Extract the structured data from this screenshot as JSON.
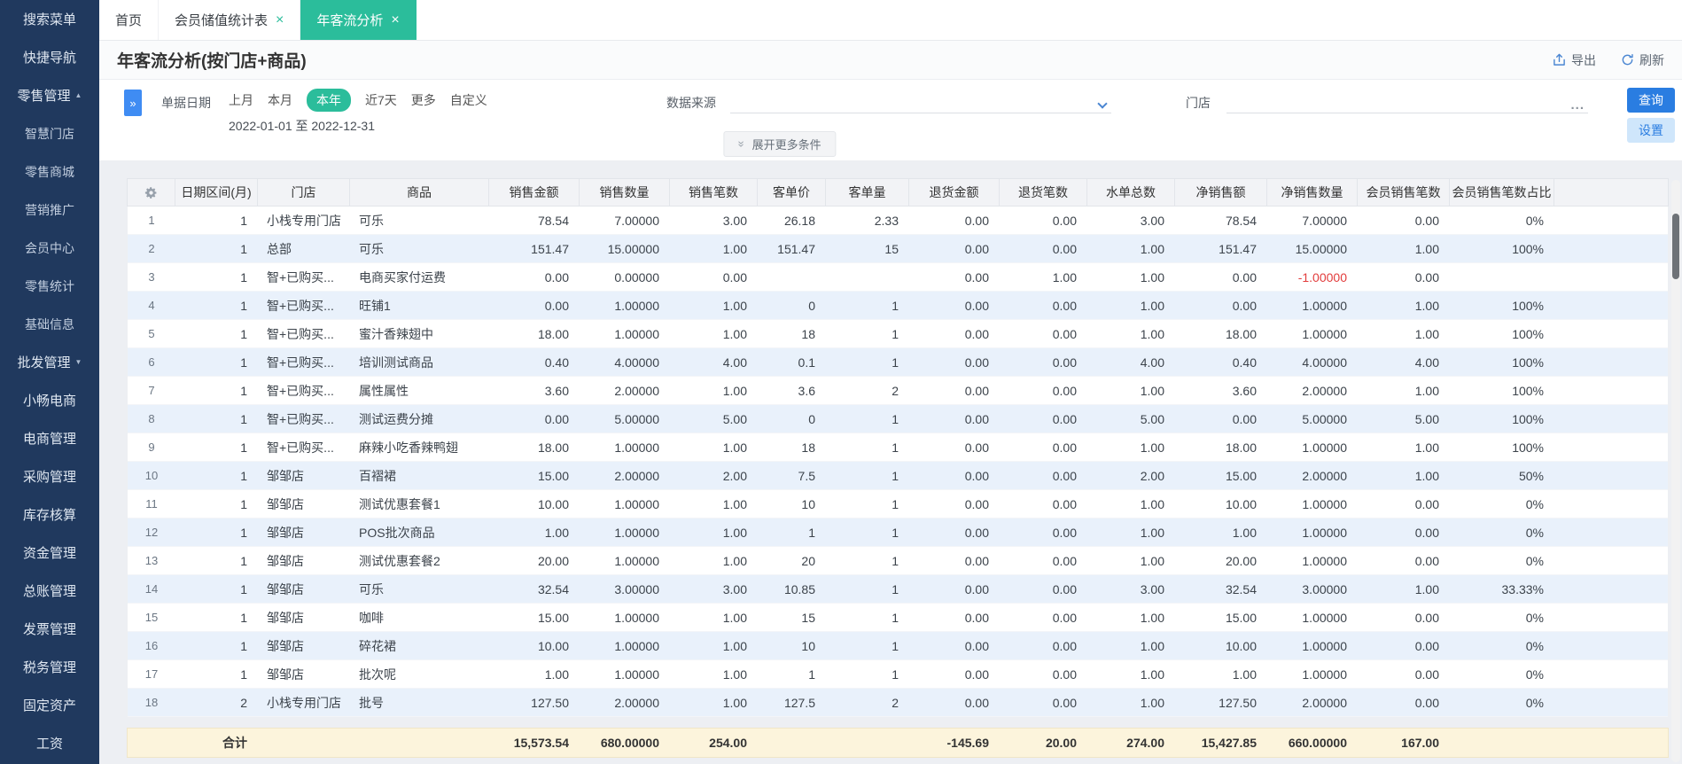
{
  "colors": {
    "sidebar_bg": "#20395e",
    "accent_teal": "#2bbd9b",
    "primary_blue": "#2a7de1",
    "negative_red": "#e23c3c",
    "total_row_bg": "#fcf4dc"
  },
  "icons": {
    "collapse_chevrons": "»",
    "expand_more_chevrons": "»",
    "close": "×",
    "chevron_up": "▲",
    "chevron_down": "▼",
    "more_ellipsis": "..."
  },
  "sidebar": {
    "items": [
      {
        "label": "搜索菜单",
        "name": "search-menu",
        "type": "top"
      },
      {
        "label": "快捷导航",
        "name": "quick-nav",
        "type": "top"
      },
      {
        "label": "零售管理",
        "name": "retail-management",
        "type": "group",
        "state": "expanded"
      },
      {
        "label": "智慧门店",
        "name": "smart-store",
        "type": "sub"
      },
      {
        "label": "零售商城",
        "name": "retail-mall",
        "type": "sub"
      },
      {
        "label": "营销推广",
        "name": "marketing-promotion",
        "type": "sub"
      },
      {
        "label": "会员中心",
        "name": "member-center",
        "type": "sub"
      },
      {
        "label": "零售统计",
        "name": "retail-statistics",
        "type": "sub"
      },
      {
        "label": "基础信息",
        "name": "basic-info",
        "type": "sub"
      },
      {
        "label": "批发管理",
        "name": "wholesale-management",
        "type": "group",
        "state": "collapsed"
      },
      {
        "label": "小畅电商",
        "name": "xiaochang-ecommerce",
        "type": "top"
      },
      {
        "label": "电商管理",
        "name": "ecommerce-management",
        "type": "top"
      },
      {
        "label": "采购管理",
        "name": "purchase-management",
        "type": "top"
      },
      {
        "label": "库存核算",
        "name": "inventory-accounting",
        "type": "top"
      },
      {
        "label": "资金管理",
        "name": "funds-management",
        "type": "top"
      },
      {
        "label": "总账管理",
        "name": "general-ledger",
        "type": "top"
      },
      {
        "label": "发票管理",
        "name": "invoice-management",
        "type": "top"
      },
      {
        "label": "税务管理",
        "name": "tax-management",
        "type": "top"
      },
      {
        "label": "固定资产",
        "name": "fixed-assets",
        "type": "top"
      },
      {
        "label": "工资",
        "name": "payroll",
        "type": "top"
      }
    ]
  },
  "tabs": [
    {
      "label": "首页",
      "name": "home",
      "closable": false,
      "active": false
    },
    {
      "label": "会员储值统计表",
      "name": "member-stored-value-report",
      "closable": true,
      "active": false
    },
    {
      "label": "年客流分析",
      "name": "annual-customer-flow",
      "closable": true,
      "active": true
    }
  ],
  "page": {
    "title": "年客流分析(按门店+商品)",
    "export_label": "导出",
    "refresh_label": "刷新"
  },
  "filters": {
    "date_label": "单据日期",
    "quick_options": [
      {
        "label": "上月",
        "name": "last-month",
        "selected": false
      },
      {
        "label": "本月",
        "name": "this-month",
        "selected": false
      },
      {
        "label": "本年",
        "name": "this-year",
        "selected": true
      },
      {
        "label": "近7天",
        "name": "last-7-days",
        "selected": false
      },
      {
        "label": "更多",
        "name": "more",
        "selected": false
      },
      {
        "label": "自定义",
        "name": "custom",
        "selected": false
      }
    ],
    "date_range": "2022-01-01 至 2022-12-31",
    "data_source_label": "数据来源",
    "store_label": "门店",
    "query_label": "查询",
    "settings_label": "设置",
    "expand_more_label": "展开更多条件"
  },
  "table": {
    "columns": [
      {
        "key": "month",
        "label": "日期区间(月)",
        "align": "right"
      },
      {
        "key": "store",
        "label": "门店",
        "align": "left"
      },
      {
        "key": "product",
        "label": "商品",
        "align": "left"
      },
      {
        "key": "sale_amt",
        "label": "销售金额",
        "align": "right"
      },
      {
        "key": "sale_qty",
        "label": "销售数量",
        "align": "right"
      },
      {
        "key": "sale_cnt",
        "label": "销售笔数",
        "align": "right"
      },
      {
        "key": "price",
        "label": "客单价",
        "align": "right"
      },
      {
        "key": "per_qty",
        "label": "客单量",
        "align": "right"
      },
      {
        "key": "ret_amt",
        "label": "退货金额",
        "align": "right"
      },
      {
        "key": "ret_cnt",
        "label": "退货笔数",
        "align": "right"
      },
      {
        "key": "bill_cnt",
        "label": "水单总数",
        "align": "right"
      },
      {
        "key": "net_amt",
        "label": "净销售额",
        "align": "right"
      },
      {
        "key": "net_qty",
        "label": "净销售数量",
        "align": "right"
      },
      {
        "key": "mem_cnt",
        "label": "会员销售笔数",
        "align": "right"
      },
      {
        "key": "mem_pct",
        "label": "会员销售笔数占比",
        "align": "right"
      }
    ],
    "rows": [
      {
        "num": "1",
        "month": "1",
        "store": "小栈专用门店",
        "product": "可乐",
        "sale_amt": "78.54",
        "sale_qty": "7.00000",
        "sale_cnt": "3.00",
        "price": "26.18",
        "per_qty": "2.33",
        "ret_amt": "0.00",
        "ret_cnt": "0.00",
        "bill_cnt": "3.00",
        "net_amt": "78.54",
        "net_qty": "7.00000",
        "mem_cnt": "0.00",
        "mem_pct": "0%"
      },
      {
        "num": "2",
        "month": "1",
        "store": "总部",
        "product": "可乐",
        "sale_amt": "151.47",
        "sale_qty": "15.00000",
        "sale_cnt": "1.00",
        "price": "151.47",
        "per_qty": "15",
        "ret_amt": "0.00",
        "ret_cnt": "0.00",
        "bill_cnt": "1.00",
        "net_amt": "151.47",
        "net_qty": "15.00000",
        "mem_cnt": "1.00",
        "mem_pct": "100%"
      },
      {
        "num": "3",
        "month": "1",
        "store": "智+已购买...",
        "product": "电商买家付运费",
        "sale_amt": "0.00",
        "sale_qty": "0.00000",
        "sale_cnt": "0.00",
        "price": "",
        "per_qty": "",
        "ret_amt": "0.00",
        "ret_cnt": "1.00",
        "bill_cnt": "1.00",
        "net_amt": "0.00",
        "net_qty": "-1.00000",
        "mem_cnt": "0.00",
        "mem_pct": ""
      },
      {
        "num": "4",
        "month": "1",
        "store": "智+已购买...",
        "product": "旺铺1",
        "sale_amt": "0.00",
        "sale_qty": "1.00000",
        "sale_cnt": "1.00",
        "price": "0",
        "per_qty": "1",
        "ret_amt": "0.00",
        "ret_cnt": "0.00",
        "bill_cnt": "1.00",
        "net_amt": "0.00",
        "net_qty": "1.00000",
        "mem_cnt": "1.00",
        "mem_pct": "100%"
      },
      {
        "num": "5",
        "month": "1",
        "store": "智+已购买...",
        "product": "蜜汁香辣翅中",
        "sale_amt": "18.00",
        "sale_qty": "1.00000",
        "sale_cnt": "1.00",
        "price": "18",
        "per_qty": "1",
        "ret_amt": "0.00",
        "ret_cnt": "0.00",
        "bill_cnt": "1.00",
        "net_amt": "18.00",
        "net_qty": "1.00000",
        "mem_cnt": "1.00",
        "mem_pct": "100%"
      },
      {
        "num": "6",
        "month": "1",
        "store": "智+已购买...",
        "product": "培训测试商品",
        "sale_amt": "0.40",
        "sale_qty": "4.00000",
        "sale_cnt": "4.00",
        "price": "0.1",
        "per_qty": "1",
        "ret_amt": "0.00",
        "ret_cnt": "0.00",
        "bill_cnt": "4.00",
        "net_amt": "0.40",
        "net_qty": "4.00000",
        "mem_cnt": "4.00",
        "mem_pct": "100%"
      },
      {
        "num": "7",
        "month": "1",
        "store": "智+已购买...",
        "product": "属性属性",
        "sale_amt": "3.60",
        "sale_qty": "2.00000",
        "sale_cnt": "1.00",
        "price": "3.6",
        "per_qty": "2",
        "ret_amt": "0.00",
        "ret_cnt": "0.00",
        "bill_cnt": "1.00",
        "net_amt": "3.60",
        "net_qty": "2.00000",
        "mem_cnt": "1.00",
        "mem_pct": "100%"
      },
      {
        "num": "8",
        "month": "1",
        "store": "智+已购买...",
        "product": "测试运费分摊",
        "sale_amt": "0.00",
        "sale_qty": "5.00000",
        "sale_cnt": "5.00",
        "price": "0",
        "per_qty": "1",
        "ret_amt": "0.00",
        "ret_cnt": "0.00",
        "bill_cnt": "5.00",
        "net_amt": "0.00",
        "net_qty": "5.00000",
        "mem_cnt": "5.00",
        "mem_pct": "100%"
      },
      {
        "num": "9",
        "month": "1",
        "store": "智+已购买...",
        "product": "麻辣小吃香辣鸭翅",
        "sale_amt": "18.00",
        "sale_qty": "1.00000",
        "sale_cnt": "1.00",
        "price": "18",
        "per_qty": "1",
        "ret_amt": "0.00",
        "ret_cnt": "0.00",
        "bill_cnt": "1.00",
        "net_amt": "18.00",
        "net_qty": "1.00000",
        "mem_cnt": "1.00",
        "mem_pct": "100%"
      },
      {
        "num": "10",
        "month": "1",
        "store": "邹邹店",
        "product": "百褶裙",
        "sale_amt": "15.00",
        "sale_qty": "2.00000",
        "sale_cnt": "2.00",
        "price": "7.5",
        "per_qty": "1",
        "ret_amt": "0.00",
        "ret_cnt": "0.00",
        "bill_cnt": "2.00",
        "net_amt": "15.00",
        "net_qty": "2.00000",
        "mem_cnt": "1.00",
        "mem_pct": "50%"
      },
      {
        "num": "11",
        "month": "1",
        "store": "邹邹店",
        "product": "测试优惠套餐1",
        "sale_amt": "10.00",
        "sale_qty": "1.00000",
        "sale_cnt": "1.00",
        "price": "10",
        "per_qty": "1",
        "ret_amt": "0.00",
        "ret_cnt": "0.00",
        "bill_cnt": "1.00",
        "net_amt": "10.00",
        "net_qty": "1.00000",
        "mem_cnt": "0.00",
        "mem_pct": "0%"
      },
      {
        "num": "12",
        "month": "1",
        "store": "邹邹店",
        "product": "POS批次商品",
        "sale_amt": "1.00",
        "sale_qty": "1.00000",
        "sale_cnt": "1.00",
        "price": "1",
        "per_qty": "1",
        "ret_amt": "0.00",
        "ret_cnt": "0.00",
        "bill_cnt": "1.00",
        "net_amt": "1.00",
        "net_qty": "1.00000",
        "mem_cnt": "0.00",
        "mem_pct": "0%"
      },
      {
        "num": "13",
        "month": "1",
        "store": "邹邹店",
        "product": "测试优惠套餐2",
        "sale_amt": "20.00",
        "sale_qty": "1.00000",
        "sale_cnt": "1.00",
        "price": "20",
        "per_qty": "1",
        "ret_amt": "0.00",
        "ret_cnt": "0.00",
        "bill_cnt": "1.00",
        "net_amt": "20.00",
        "net_qty": "1.00000",
        "mem_cnt": "0.00",
        "mem_pct": "0%"
      },
      {
        "num": "14",
        "month": "1",
        "store": "邹邹店",
        "product": "可乐",
        "sale_amt": "32.54",
        "sale_qty": "3.00000",
        "sale_cnt": "3.00",
        "price": "10.85",
        "per_qty": "1",
        "ret_amt": "0.00",
        "ret_cnt": "0.00",
        "bill_cnt": "3.00",
        "net_amt": "32.54",
        "net_qty": "3.00000",
        "mem_cnt": "1.00",
        "mem_pct": "33.33%"
      },
      {
        "num": "15",
        "month": "1",
        "store": "邹邹店",
        "product": "咖啡",
        "sale_amt": "15.00",
        "sale_qty": "1.00000",
        "sale_cnt": "1.00",
        "price": "15",
        "per_qty": "1",
        "ret_amt": "0.00",
        "ret_cnt": "0.00",
        "bill_cnt": "1.00",
        "net_amt": "15.00",
        "net_qty": "1.00000",
        "mem_cnt": "0.00",
        "mem_pct": "0%"
      },
      {
        "num": "16",
        "month": "1",
        "store": "邹邹店",
        "product": "碎花裙",
        "sale_amt": "10.00",
        "sale_qty": "1.00000",
        "sale_cnt": "1.00",
        "price": "10",
        "per_qty": "1",
        "ret_amt": "0.00",
        "ret_cnt": "0.00",
        "bill_cnt": "1.00",
        "net_amt": "10.00",
        "net_qty": "1.00000",
        "mem_cnt": "0.00",
        "mem_pct": "0%"
      },
      {
        "num": "17",
        "month": "1",
        "store": "邹邹店",
        "product": "批次呢",
        "sale_amt": "1.00",
        "sale_qty": "1.00000",
        "sale_cnt": "1.00",
        "price": "1",
        "per_qty": "1",
        "ret_amt": "0.00",
        "ret_cnt": "0.00",
        "bill_cnt": "1.00",
        "net_amt": "1.00",
        "net_qty": "1.00000",
        "mem_cnt": "0.00",
        "mem_pct": "0%"
      },
      {
        "num": "18",
        "month": "2",
        "store": "小栈专用门店",
        "product": "批号",
        "sale_amt": "127.50",
        "sale_qty": "2.00000",
        "sale_cnt": "1.00",
        "price": "127.5",
        "per_qty": "2",
        "ret_amt": "0.00",
        "ret_cnt": "0.00",
        "bill_cnt": "1.00",
        "net_amt": "127.50",
        "net_qty": "2.00000",
        "mem_cnt": "0.00",
        "mem_pct": "0%"
      }
    ],
    "total": {
      "label": "合计",
      "sale_amt": "15,573.54",
      "sale_qty": "680.00000",
      "sale_cnt": "254.00",
      "price": "",
      "per_qty": "",
      "ret_amt": "-145.69",
      "ret_cnt": "20.00",
      "bill_cnt": "274.00",
      "net_amt": "15,427.85",
      "net_qty": "660.00000",
      "mem_cnt": "167.00",
      "mem_pct": ""
    }
  }
}
